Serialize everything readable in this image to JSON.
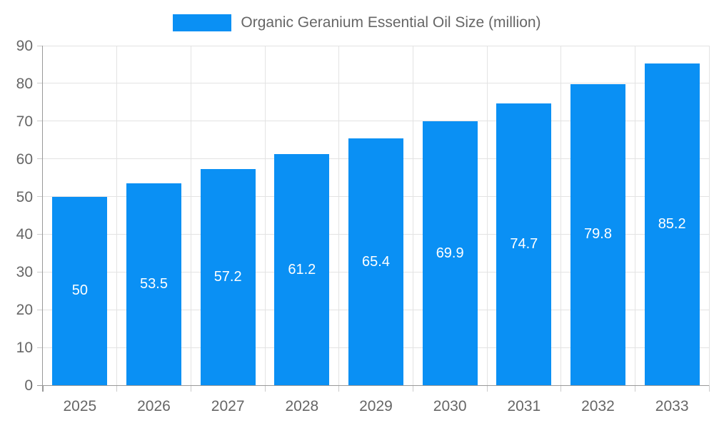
{
  "chart_data": {
    "type": "bar",
    "title": "Organic Geranium Essential Oil Size (million)",
    "categories": [
      "2025",
      "2026",
      "2027",
      "2028",
      "2029",
      "2030",
      "2031",
      "2032",
      "2033"
    ],
    "values": [
      50,
      53.5,
      57.2,
      61.2,
      65.4,
      69.9,
      74.7,
      79.8,
      85.2
    ],
    "value_labels": [
      "50",
      "53.5",
      "57.2",
      "61.2",
      "65.4",
      "69.9",
      "74.7",
      "79.8",
      "85.2"
    ],
    "xlabel": "",
    "ylabel": "",
    "ylim": [
      0,
      90
    ],
    "y_ticks": [
      0,
      10,
      20,
      30,
      40,
      50,
      60,
      70,
      80,
      90
    ],
    "grid": true,
    "legend_position": "top-center",
    "colors": {
      "bar": "#0a90f4",
      "bar_label": "#ffffff",
      "axis_text": "#666666",
      "gridline": "#e3e3e3",
      "axis_line": "#999999",
      "tick_mark": "#cccccc",
      "background": "#ffffff"
    }
  }
}
